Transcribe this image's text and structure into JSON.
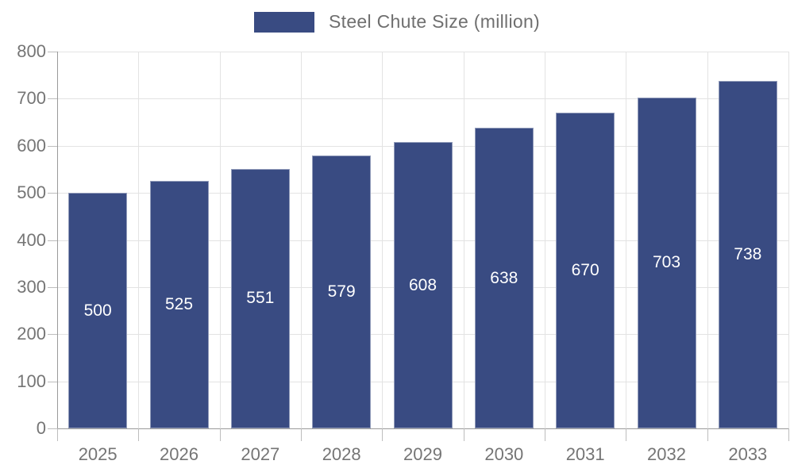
{
  "chart_data": {
    "type": "bar",
    "title": "",
    "legend": {
      "label": "Steel Chute Size (million)",
      "position": "top-center"
    },
    "categories": [
      "2025",
      "2026",
      "2027",
      "2028",
      "2029",
      "2030",
      "2031",
      "2032",
      "2033"
    ],
    "series": [
      {
        "name": "Steel Chute Size (million)",
        "values": [
          500,
          525,
          551,
          579,
          608,
          638,
          670,
          703,
          738
        ]
      }
    ],
    "xlabel": "",
    "ylabel": "",
    "ylim": [
      0,
      800
    ],
    "yticks": [
      0,
      100,
      200,
      300,
      400,
      500,
      600,
      700,
      800
    ],
    "grid": true,
    "value_labels": "centered-inside-bars",
    "colors": {
      "bar_fill": "#394b82",
      "bar_border": "rgba(255,255,255,0.45)",
      "grid": "#e3e3e3",
      "axis": "#9a9a9a",
      "tick": "#bdbdbd",
      "tick_label": "#757575",
      "value_label": "#ffffff",
      "legend_text": "#6f6f6f",
      "background": "#ffffff"
    }
  }
}
